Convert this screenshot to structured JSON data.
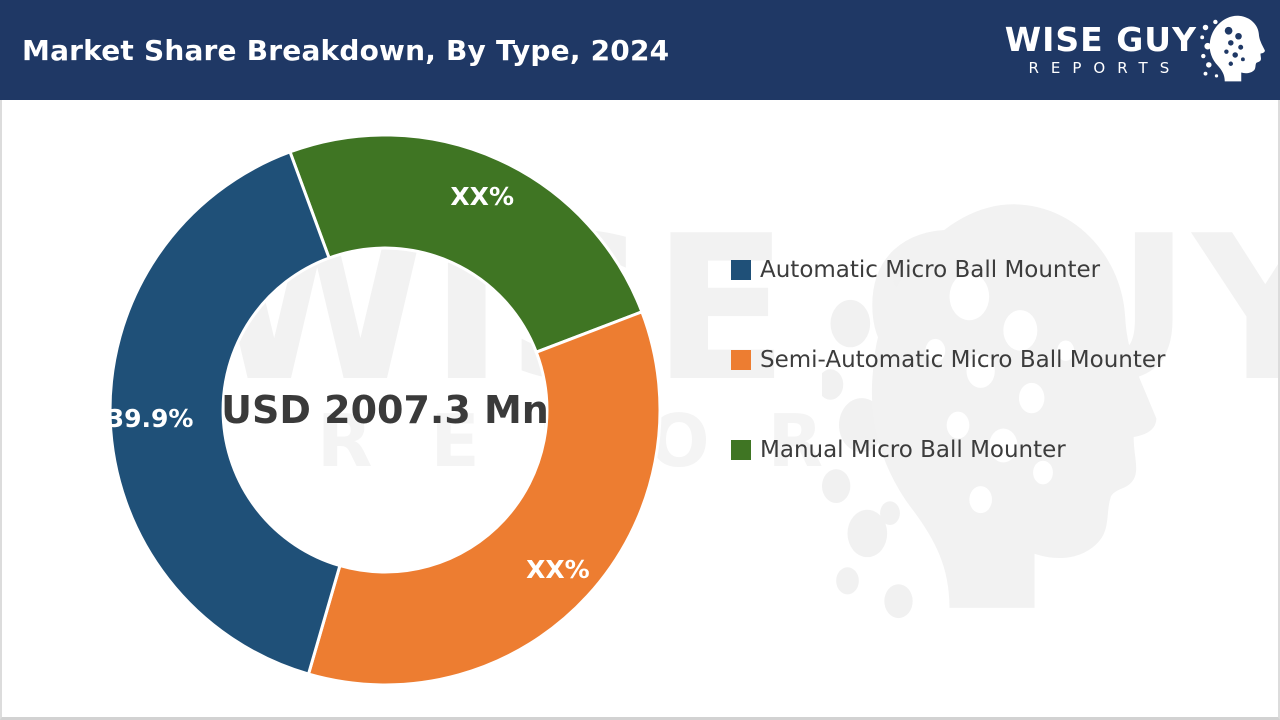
{
  "header": {
    "title": "Market Share Breakdown, By Type, 2024",
    "logo": {
      "name": "WISE GUY",
      "subtitle": "REPORTS"
    }
  },
  "watermark": {
    "line1": "WISE GUY",
    "line2": "REPORTS"
  },
  "chart_data": {
    "type": "donut",
    "title": "Market Share Breakdown, By Type, 2024",
    "center_label": "USD 2007.3 Mn",
    "start_angle_deg": -20.2,
    "direction": "clockwise",
    "inner_radius_ratio": 0.59,
    "legend_position": "right",
    "slices": [
      {
        "name": "Manual Micro Ball Mounter",
        "pct": 24.8,
        "label": "XX%",
        "color": "#3F7523"
      },
      {
        "name": "Semi-Automatic Micro Ball Mounter",
        "pct": 35.3,
        "label": "XX%",
        "color": "#ED7D31"
      },
      {
        "name": "Automatic Micro Ball Mounter",
        "pct": 39.9,
        "label": "39.9%",
        "color": "#1F5078"
      }
    ]
  },
  "legend": {
    "items": [
      {
        "label": "Automatic Micro Ball Mounter",
        "color": "#1F5078"
      },
      {
        "label": "Semi-Automatic Micro Ball Mounter",
        "color": "#ED7D31"
      },
      {
        "label": "Manual Micro Ball Mounter",
        "color": "#3F7523"
      }
    ]
  }
}
